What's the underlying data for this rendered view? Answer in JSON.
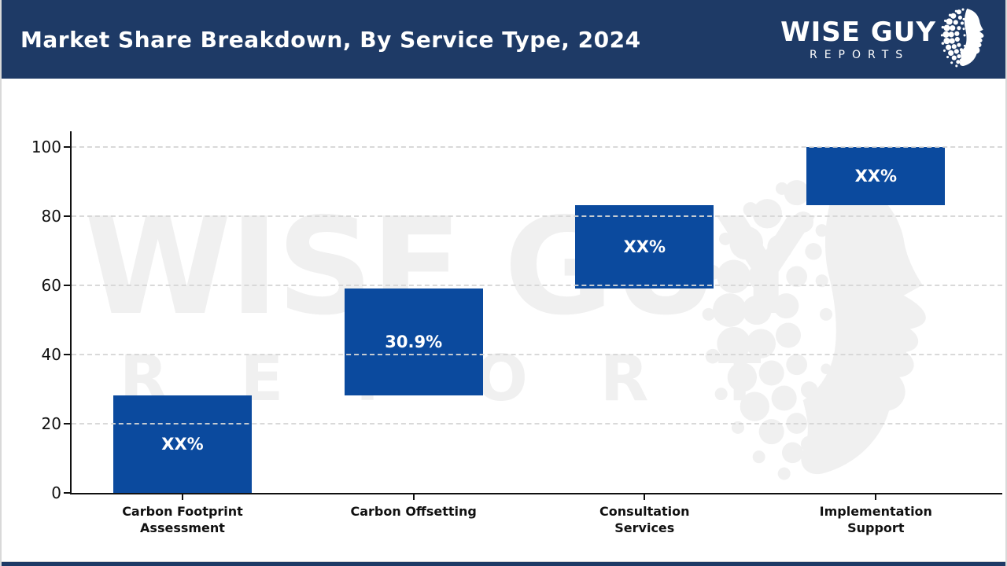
{
  "header": {
    "title": "Market Share Breakdown, By Service Type, 2024",
    "logo": {
      "line1": "WISE GUY",
      "line2": "REPORTS"
    }
  },
  "watermark": {
    "line1": "WISE GUY",
    "line2": "REPORTS"
  },
  "chart_data": {
    "type": "bar",
    "subtype": "waterfall",
    "title": "Market Share Breakdown, By Service Type, 2024",
    "categories": [
      "Carbon Footprint Assessment",
      "Carbon Offsetting",
      "Consultation Services",
      "Implementation Support"
    ],
    "categories_lines": [
      [
        "Carbon Footprint",
        "Assessment"
      ],
      [
        "Carbon Offsetting"
      ],
      [
        "Consultation",
        "Services"
      ],
      [
        "Implementation",
        "Support"
      ]
    ],
    "segments": [
      [
        0,
        28.2
      ],
      [
        28.2,
        59.1
      ],
      [
        59.1,
        83.2
      ],
      [
        83.2,
        100
      ]
    ],
    "bar_labels": [
      "XX%",
      "30.9%",
      "XX%",
      "XX%"
    ],
    "ylim": [
      0,
      100
    ],
    "yticks": [
      0,
      20,
      40,
      60,
      80,
      100
    ],
    "grid": "dashed horizontal, drawn over bars",
    "legend": "none",
    "bar_color": "#0b4a9e",
    "colors": {
      "header_bg": "#1e3a66",
      "footer_bg": "#1e3a66",
      "axis": "#111111",
      "gridline": "#d6d6d6",
      "watermark": "#f0f0f0",
      "bar_label_text": "#ffffff",
      "tick_label_text": "#111111"
    }
  }
}
